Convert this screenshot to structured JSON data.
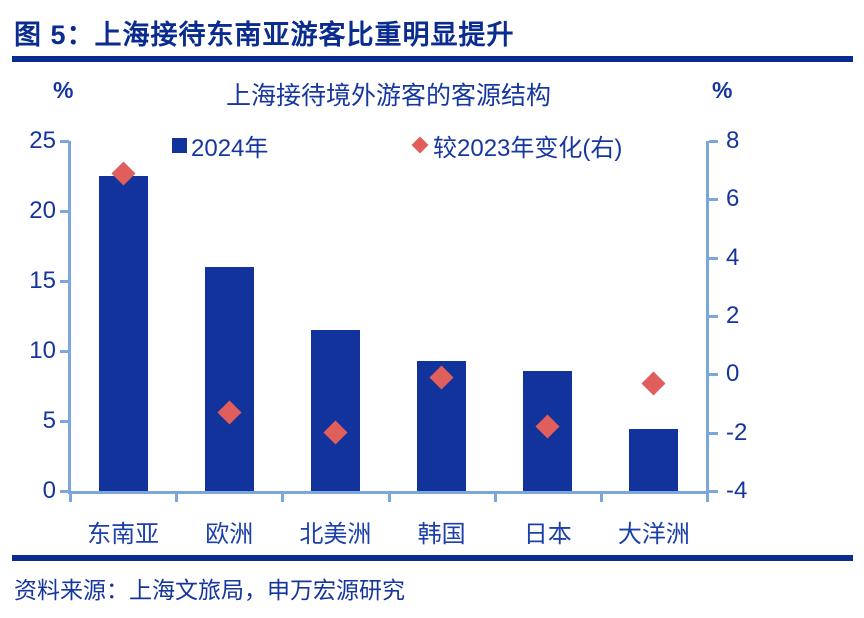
{
  "figure": {
    "title": "图 5：上海接待东南亚游客比重明显提升"
  },
  "chart": {
    "title": "上海接待境外游客的客源结构",
    "left_unit_label": "%",
    "right_unit_label": "%",
    "legend": [
      {
        "label": "2024年",
        "marker": "square-icon",
        "color": "#12339B"
      },
      {
        "label": "较2023年变化(右)",
        "marker": "diamond-icon",
        "color": "#E05F5C"
      }
    ]
  },
  "chart_data": {
    "type": "bar",
    "title": "上海接待境外游客的客源结构",
    "categories": [
      "东南亚",
      "欧洲",
      "北美洲",
      "韩国",
      "日本",
      "大洋洲"
    ],
    "series": [
      {
        "name": "2024年",
        "type": "bar",
        "axis": "left",
        "color": "#12339B",
        "values": [
          22.5,
          16.0,
          11.5,
          9.3,
          8.6,
          4.4
        ]
      },
      {
        "name": "较2023年变化(右)",
        "type": "scatter",
        "marker": "diamond",
        "axis": "right",
        "color": "#E05F5C",
        "values": [
          6.9,
          -1.3,
          -2.0,
          -0.1,
          -1.8,
          -0.3
        ]
      }
    ],
    "left_axis": {
      "label": "%",
      "min": 0,
      "max": 25,
      "ticks": [
        0,
        5,
        10,
        15,
        20,
        25
      ]
    },
    "right_axis": {
      "label": "%",
      "min": -4,
      "max": 8,
      "ticks": [
        -4,
        -2,
        0,
        2,
        4,
        6,
        8
      ]
    },
    "grid": false,
    "legend_position": "top"
  },
  "source": {
    "text": "资料来源：上海文旅局，申万宏源研究"
  },
  "colors": {
    "header_navy": "#0A2C8E",
    "chart_text_blue": "#16379F",
    "tick_text_blue": "#15359C",
    "bar_blue": "#12339B",
    "diamond_red": "#E05F5C",
    "axis_light_blue": "#7DA6DB"
  }
}
